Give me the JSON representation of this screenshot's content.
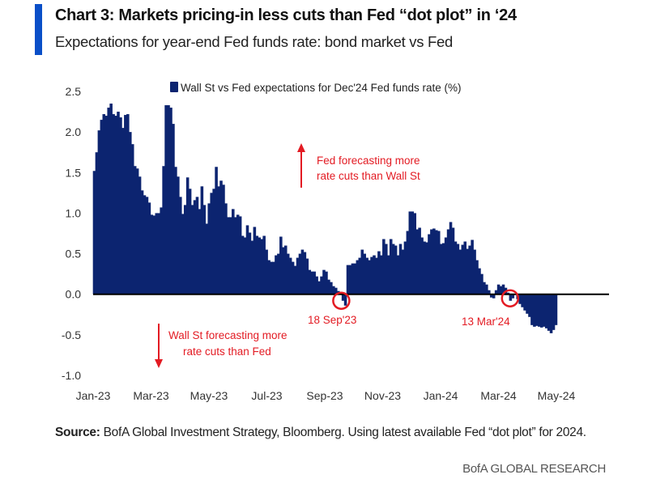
{
  "header": {
    "title": "Chart 3: Markets pricing-in less cuts than Fed “dot plot” in ‘24",
    "subtitle": "Expectations for year-end Fed funds rate: bond market vs Fed",
    "accent_color": "#0a4fc8"
  },
  "footer": {
    "source_label": "Source:",
    "source_text": " BofA Global Investment Strategy, Bloomberg. Using latest available Fed “dot plot” for 2024.",
    "brand": "BofA GLOBAL RESEARCH"
  },
  "chart_data": {
    "type": "area",
    "title": "Chart 3: Markets pricing-in less cuts than Fed “dot plot” in ‘24",
    "subtitle": "Expectations for year-end Fed funds rate: bond market vs Fed",
    "xlabel": "",
    "ylabel": "",
    "ylim": [
      -1.0,
      2.5
    ],
    "yticks": [
      2.5,
      2.0,
      1.5,
      1.0,
      0.5,
      0.0,
      -0.5,
      -1.0
    ],
    "ytick_labels": [
      "2.5",
      "2.0",
      "1.5",
      "1.0",
      "0.5",
      "0.0",
      "-0.5",
      "-1.0"
    ],
    "xticks": [
      "Jan-23",
      "Mar-23",
      "May-23",
      "Jul-23",
      "Sep-23",
      "Nov-23",
      "Jan-24",
      "Mar-24",
      "May-24"
    ],
    "xrange_months": [
      0,
      17
    ],
    "x_start": "Jan-2023",
    "x_end": "mid-May-2024",
    "grid": false,
    "legend_position": "top-center",
    "series": [
      {
        "name": "Wall St vs Fed expectations for Dec'24 Fed funds rate (%)",
        "color": "#0c2470",
        "values": [
          1.52,
          1.75,
          2.02,
          2.15,
          2.22,
          2.2,
          2.3,
          2.35,
          2.22,
          2.2,
          2.25,
          2.18,
          2.05,
          2.21,
          2.22,
          2.0,
          1.85,
          1.58,
          1.55,
          1.45,
          1.28,
          1.22,
          1.2,
          1.13,
          0.98,
          0.97,
          1.0,
          1.0,
          1.07,
          1.58,
          2.33,
          2.33,
          2.3,
          2.1,
          1.57,
          1.45,
          1.2,
          0.99,
          1.1,
          1.44,
          1.3,
          1.1,
          1.16,
          1.2,
          1.05,
          1.33,
          1.1,
          0.87,
          1.12,
          1.25,
          1.3,
          1.57,
          1.33,
          1.4,
          1.35,
          1.12,
          0.95,
          0.95,
          1.05,
          0.95,
          0.98,
          0.96,
          0.72,
          0.7,
          0.85,
          0.76,
          0.66,
          0.83,
          0.72,
          0.7,
          0.68,
          0.72,
          0.55,
          0.42,
          0.4,
          0.4,
          0.48,
          0.5,
          0.71,
          0.58,
          0.6,
          0.5,
          0.45,
          0.4,
          0.35,
          0.45,
          0.5,
          0.55,
          0.52,
          0.44,
          0.3,
          0.28,
          0.28,
          0.22,
          0.16,
          0.22,
          0.3,
          0.28,
          0.18,
          0.15,
          0.1,
          0.08,
          0.04,
          0.02,
          -0.08,
          -0.14,
          0.36,
          0.36,
          0.38,
          0.38,
          0.42,
          0.45,
          0.55,
          0.5,
          0.45,
          0.42,
          0.46,
          0.48,
          0.45,
          0.53,
          0.48,
          0.68,
          0.62,
          0.48,
          0.68,
          0.62,
          0.6,
          0.48,
          0.62,
          0.55,
          0.65,
          0.78,
          1.02,
          1.02,
          1.0,
          0.8,
          0.82,
          0.7,
          0.65,
          0.64,
          0.74,
          0.8,
          0.81,
          0.79,
          0.78,
          0.62,
          0.63,
          0.7,
          0.8,
          0.89,
          0.82,
          0.65,
          0.62,
          0.55,
          0.61,
          0.65,
          0.56,
          0.6,
          0.67,
          0.55,
          0.42,
          0.32,
          0.25,
          0.15,
          0.12,
          0.05,
          -0.04,
          -0.05,
          0.05,
          0.12,
          0.1,
          0.12,
          0.08,
          0.02,
          -0.08,
          -0.05,
          0.0,
          -0.06,
          -0.12,
          -0.16,
          -0.2,
          -0.24,
          -0.28,
          -0.38,
          -0.4,
          -0.39,
          -0.4,
          -0.41,
          -0.4,
          -0.42,
          -0.45,
          -0.48,
          -0.44,
          -0.38
        ]
      }
    ],
    "annotations": [
      {
        "id": "up",
        "text_lines": [
          "Fed forecasting more",
          "rate cuts than Wall St"
        ],
        "arrow": "up",
        "color": "#e31b23"
      },
      {
        "id": "down",
        "text_lines": [
          "Wall St forecasting more",
          "rate cuts than Fed"
        ],
        "arrow": "down",
        "color": "#e31b23"
      },
      {
        "id": "sep",
        "text": "18 Sep'23",
        "marker": "circle",
        "date_month_offset": 8.57,
        "value": -0.08,
        "color": "#e31b23"
      },
      {
        "id": "mar",
        "text": "13 Mar'24",
        "marker": "circle",
        "date_month_offset": 14.4,
        "value": -0.05,
        "color": "#e31b23"
      }
    ]
  }
}
